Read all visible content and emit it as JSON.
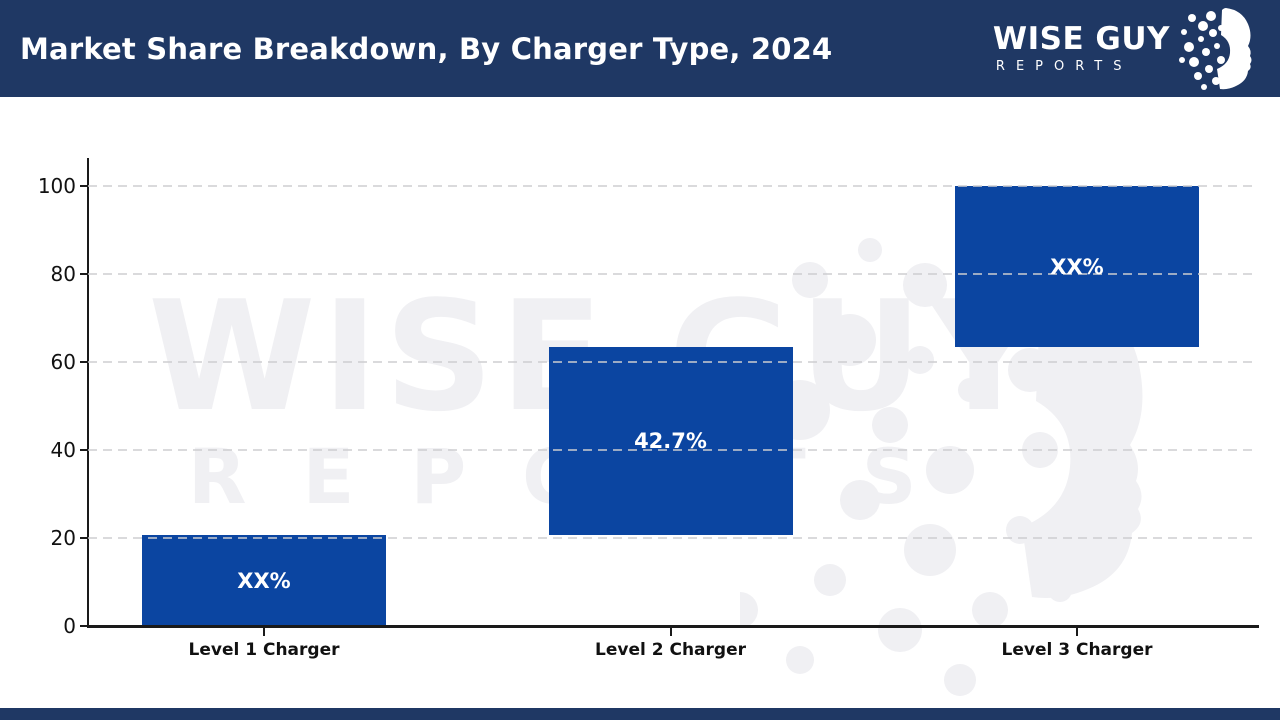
{
  "header": {
    "title": "Market Share Breakdown, By Charger Type, 2024",
    "logo": {
      "line1": "WISE GUY",
      "line2": "REPORTS"
    }
  },
  "watermark": {
    "line1": "WISE GUY",
    "line2": "REPORTS"
  },
  "colors": {
    "header_navy": "#1f3864",
    "footer_navy": "#1f3864",
    "bar_blue": "#0b45a1",
    "gridline_gray": "#d9d9d9",
    "watermark_gray": "#f0f0f3"
  },
  "chart_data": {
    "type": "bar",
    "subtype": "waterfall",
    "title": "Market Share Breakdown, By Charger Type, 2024",
    "categories": [
      "Level 1 Charger",
      "Level 2 Charger",
      "Level 3 Charger"
    ],
    "starts": [
      0,
      20.6,
      63.3
    ],
    "values": [
      20.6,
      42.7,
      36.7
    ],
    "bar_labels": [
      "XX%",
      "42.7%",
      "XX%"
    ],
    "xlabel": "",
    "ylabel": "",
    "ylim": [
      0,
      100
    ],
    "yticks": [
      0,
      20,
      40,
      60,
      80,
      100
    ],
    "grid": "horizontal-dashed",
    "legend": "none",
    "bar_color": "#0b45a1",
    "label_color": "#ffffff"
  }
}
